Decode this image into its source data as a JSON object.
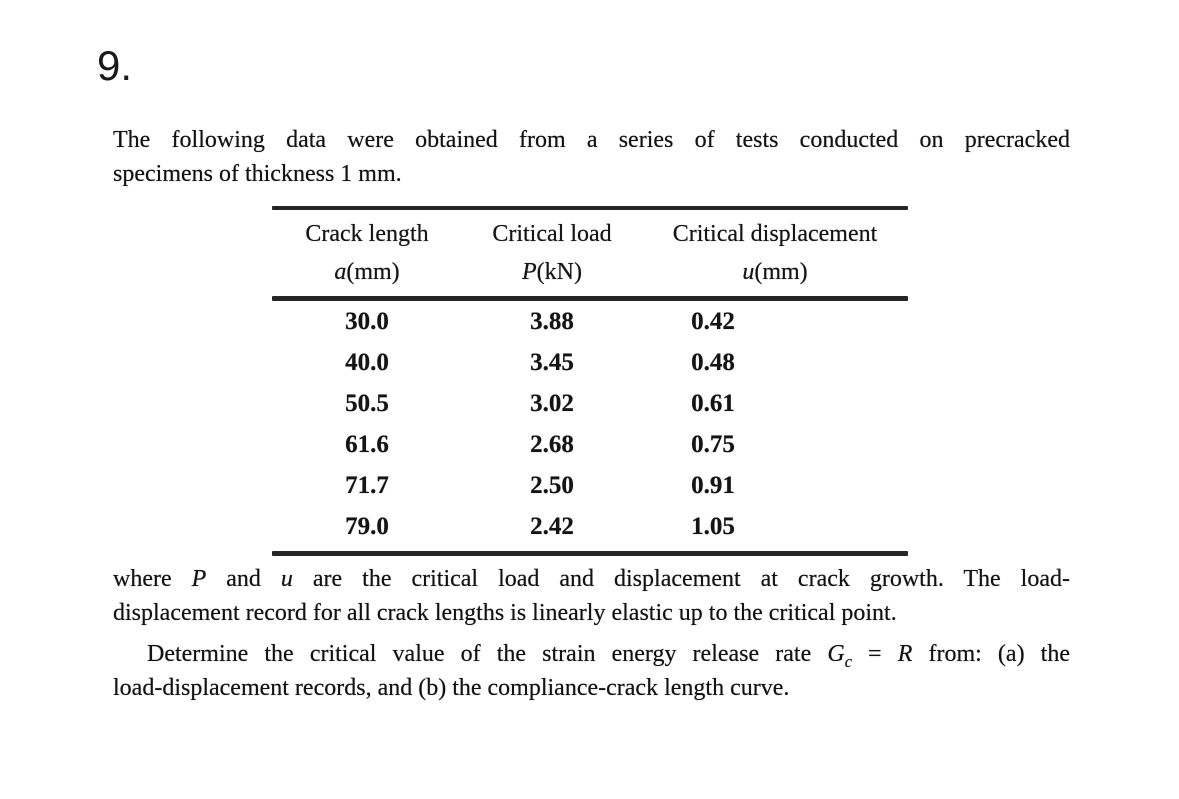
{
  "doc": {
    "problem_number": "9.",
    "intro": {
      "line1": "The following data were obtained from a series of tests conducted on precracked",
      "line2": "specimens of thickness 1 mm."
    },
    "table": {
      "columns": [
        {
          "title": "Crack length",
          "symbol": [
            {
              "t": "a",
              "i": true
            },
            {
              "t": "(mm)"
            }
          ]
        },
        {
          "title": "Critical load",
          "symbol": [
            {
              "t": "P",
              "i": true
            },
            {
              "t": "(kN)"
            }
          ]
        },
        {
          "title": "Critical displacement",
          "symbol": [
            {
              "t": "u",
              "i": true
            },
            {
              "t": "(mm)"
            }
          ]
        }
      ],
      "rows": [
        [
          "30.0",
          "3.88",
          "0.42"
        ],
        [
          "40.0",
          "3.45",
          "0.48"
        ],
        [
          "50.5",
          "3.02",
          "0.61"
        ],
        [
          "61.6",
          "2.68",
          "0.75"
        ],
        [
          "71.7",
          "2.50",
          "0.91"
        ],
        [
          "79.0",
          "2.42",
          "1.05"
        ]
      ]
    },
    "body": {
      "where_line1": [
        {
          "t": "where "
        },
        {
          "t": "P",
          "i": true
        },
        {
          "t": " and "
        },
        {
          "t": "u",
          "i": true
        },
        {
          "t": " are the critical load and displacement at crack growth. The load-"
        }
      ],
      "where_line2": "displacement record for all crack lengths is linearly elastic up to the critical point.",
      "determine_line1": [
        {
          "t": "Determine the critical value of the strain energy release rate "
        },
        {
          "t": "G",
          "i": true
        },
        {
          "t": "c",
          "i": true,
          "sub": true
        },
        {
          "t": " = "
        },
        {
          "t": "R",
          "i": true
        },
        {
          "t": " from: (a) the"
        }
      ],
      "determine_line2": "load-displacement records, and (b) the compliance-crack length curve."
    }
  }
}
